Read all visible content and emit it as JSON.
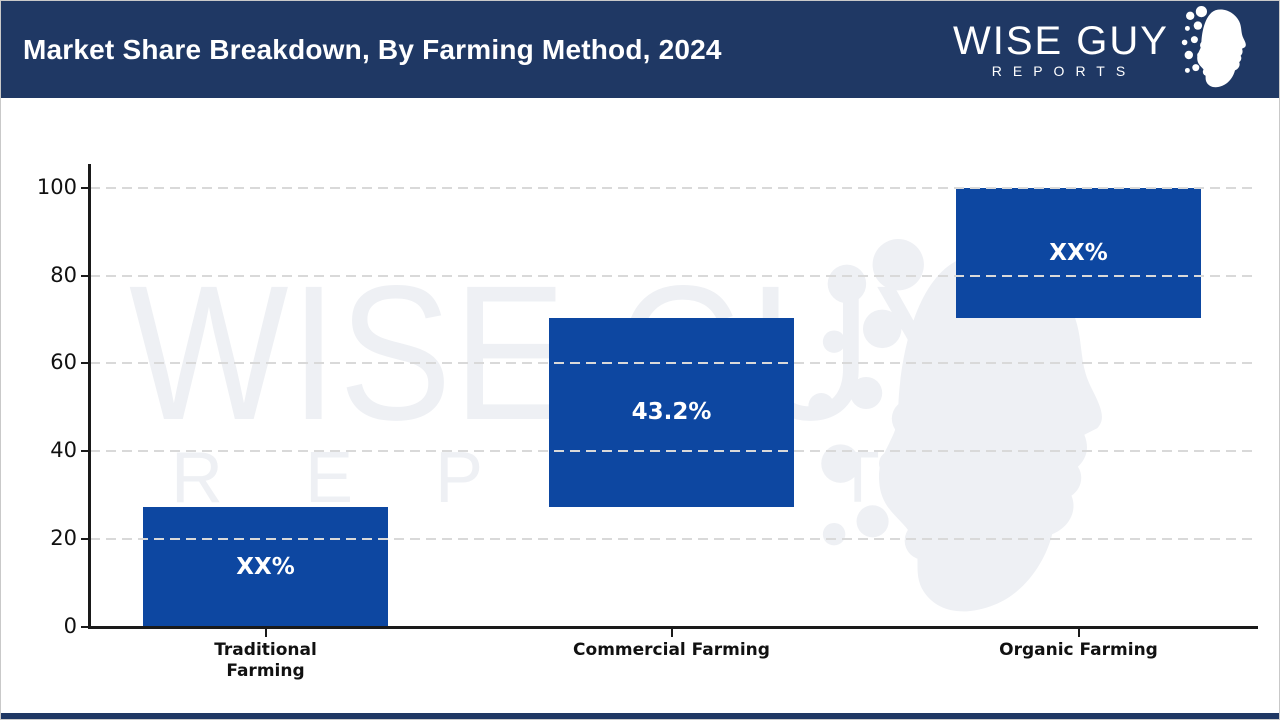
{
  "header": {
    "title": "Market Share Breakdown, By Farming Method, 2024",
    "logo_line1": "WISE GUY",
    "logo_line2": "REPORTS"
  },
  "watermark": {
    "line1": "WISE GUY",
    "line2": "REPORTS"
  },
  "chart_data": {
    "type": "bar",
    "subtype": "floating-segment-waterfall",
    "title": "Market Share Breakdown, By Farming Method, 2024",
    "categories": [
      [
        "Traditional",
        "Farming"
      ],
      [
        "Commercial Farming"
      ],
      [
        "Organic Farming"
      ]
    ],
    "segments": [
      {
        "category": "Traditional Farming",
        "start": 0,
        "end": 27.2,
        "value_label": "XX%"
      },
      {
        "category": "Commercial Farming",
        "start": 27.2,
        "end": 70.4,
        "value_label": "43.2%"
      },
      {
        "category": "Organic Farming",
        "start": 70.4,
        "end": 100,
        "value_label": "XX%"
      }
    ],
    "yticks": [
      0,
      20,
      40,
      60,
      80,
      100
    ],
    "ylim": [
      0,
      105
    ],
    "xlabel": "",
    "ylabel": "",
    "grid": "horizontal-dashed",
    "legend": "none",
    "bar_color": "#0d47a1",
    "bar_label_color": "#ffffff"
  },
  "colors": {
    "header_bg": "#1f3864",
    "footer_bg": "#1f3864",
    "grid": "#d9d9d9",
    "axis": "#1a1a1a",
    "watermark": "#eef0f4"
  }
}
